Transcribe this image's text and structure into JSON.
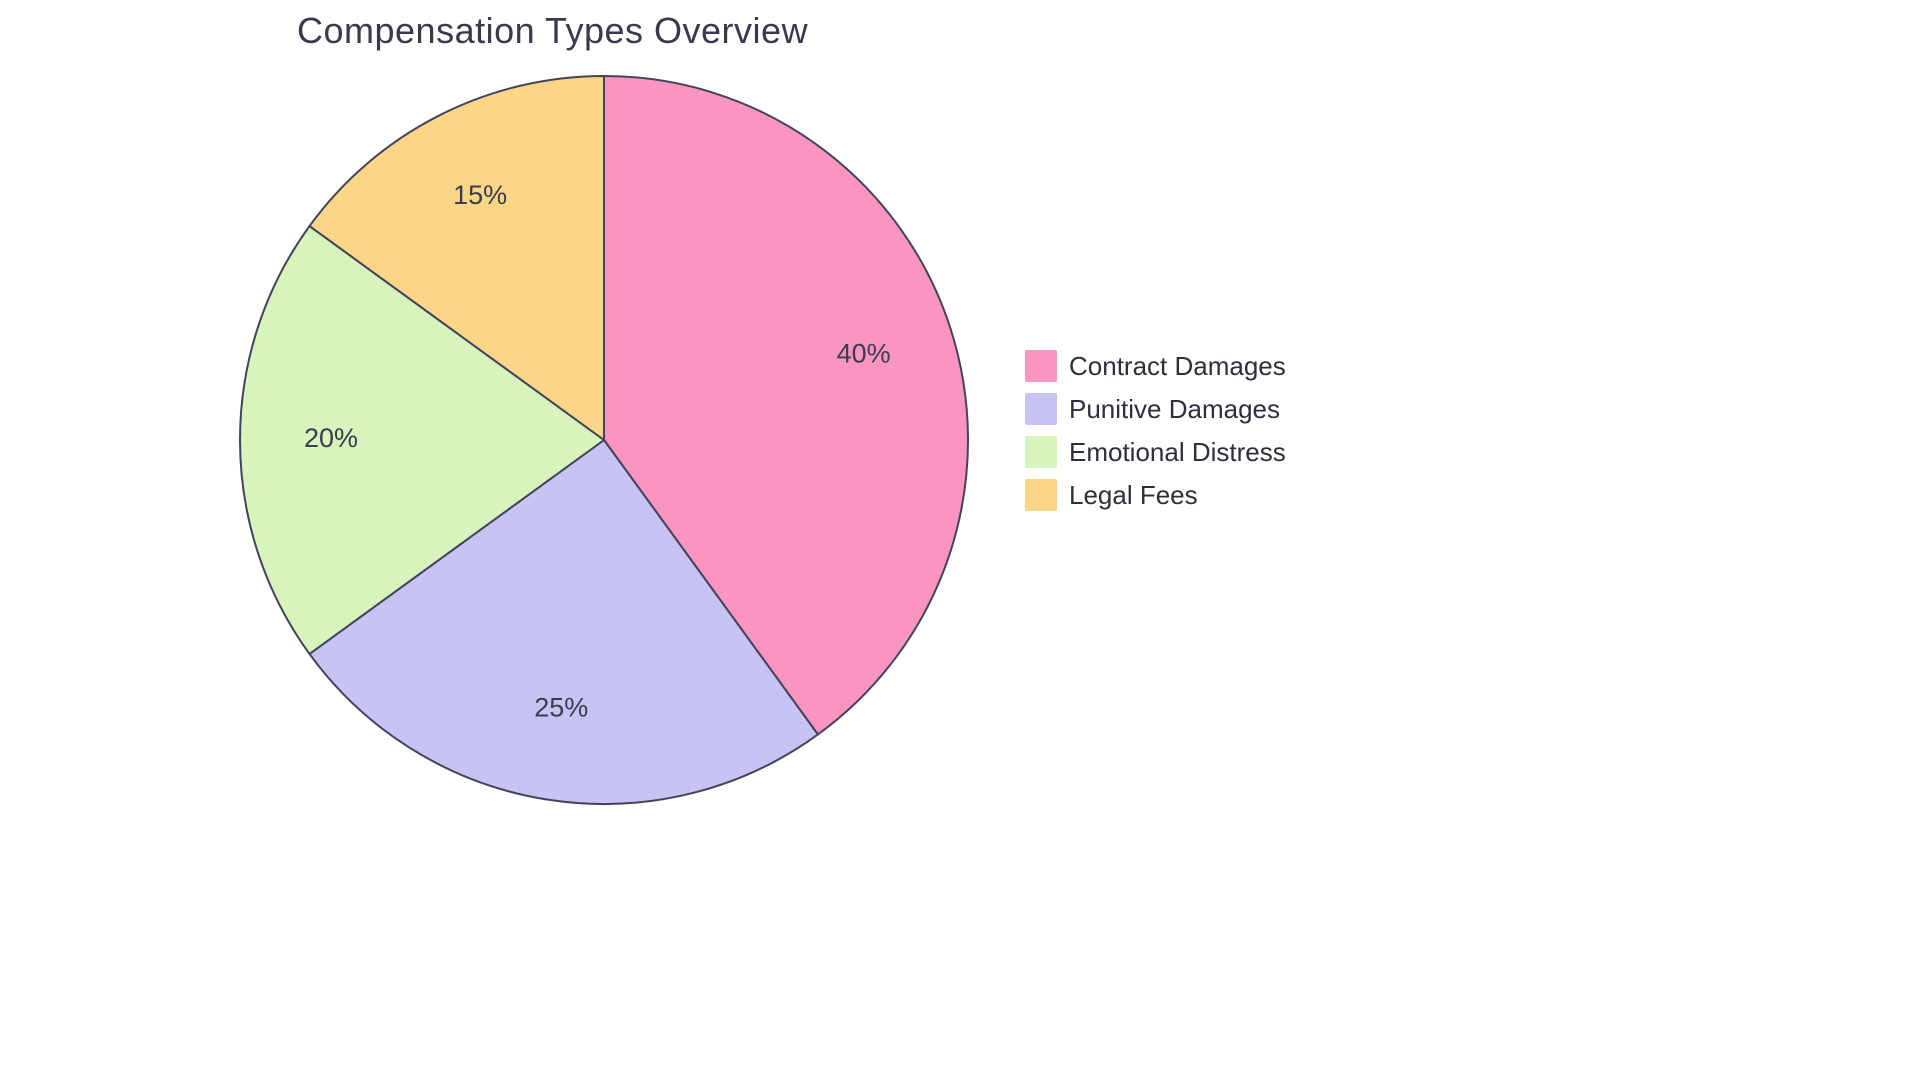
{
  "title": "Compensation Types Overview",
  "chart_data": {
    "type": "pie",
    "title": "Compensation Types Overview",
    "labels": [
      "Contract Damages",
      "Punitive Damages",
      "Emotional Distress",
      "Legal Fees"
    ],
    "values": [
      40,
      25,
      20,
      15
    ],
    "slice_labels": [
      "40%",
      "25%",
      "20%",
      "15%"
    ],
    "colors": [
      "#F995C0",
      "#C7C3F3",
      "#D7F4BC",
      "#FCD687"
    ],
    "stroke_color": "#43435C",
    "label_color": "#3C3C4E",
    "start_angle_deg": 0,
    "direction": "clockwise",
    "legend_position": "right"
  }
}
